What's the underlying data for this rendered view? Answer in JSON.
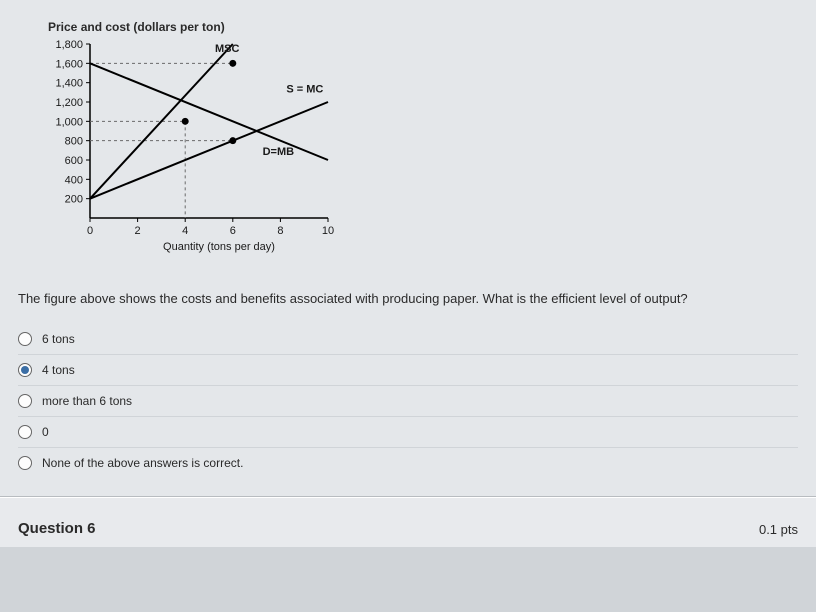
{
  "chart": {
    "title": "Price and cost (dollars per ton)",
    "xlabel": "Quantity (tons per day)",
    "y_ticks": [
      "1,800",
      "1,600",
      "1,400",
      "1,200",
      "1,000",
      "800",
      "600",
      "400",
      "200"
    ],
    "y_values": [
      1800,
      1600,
      1400,
      1200,
      1000,
      800,
      600,
      400,
      200
    ],
    "x_ticks": [
      "0",
      "2",
      "4",
      "6",
      "8",
      "10"
    ],
    "x_values": [
      0,
      2,
      4,
      6,
      8,
      10
    ],
    "xlim": [
      0,
      10
    ],
    "ylim": [
      0,
      1800
    ],
    "msc": {
      "label": "MSC",
      "points": [
        [
          0,
          200
        ],
        [
          6,
          1800
        ]
      ]
    },
    "smc": {
      "label": "S = MC",
      "points": [
        [
          0,
          200
        ],
        [
          10,
          1200
        ]
      ]
    },
    "dmb": {
      "label": "D=MB",
      "points": [
        [
          0,
          1600
        ],
        [
          10,
          600
        ]
      ]
    },
    "dashed": [
      {
        "from": [
          0,
          1000
        ],
        "to": [
          4,
          1000
        ]
      },
      {
        "from": [
          4,
          1000
        ],
        "to": [
          4,
          0
        ]
      },
      {
        "from": [
          0,
          800
        ],
        "to": [
          6,
          800
        ]
      },
      {
        "from": [
          0,
          1600
        ],
        "to": [
          6,
          1600
        ]
      }
    ],
    "dots": [
      [
        4,
        1000
      ],
      [
        6,
        800
      ],
      [
        6,
        1600
      ]
    ],
    "axis_color": "#000000",
    "line_color": "#000000",
    "dash_color": "#6a6a6a",
    "bg": "#e4e7ea",
    "font_size_axis": 11,
    "font_size_label": 11
  },
  "prompt": "The figure above shows the costs and benefits associated with producing paper. What is the efficient level of output?",
  "options": [
    {
      "label": "6 tons",
      "selected": false
    },
    {
      "label": "4 tons",
      "selected": true
    },
    {
      "label": "more than 6 tons",
      "selected": false
    },
    {
      "label": "0",
      "selected": false
    },
    {
      "label": "None of the above answers is correct.",
      "selected": false
    }
  ],
  "next_question": {
    "label": "Question 6",
    "points": "0.1 pts"
  }
}
